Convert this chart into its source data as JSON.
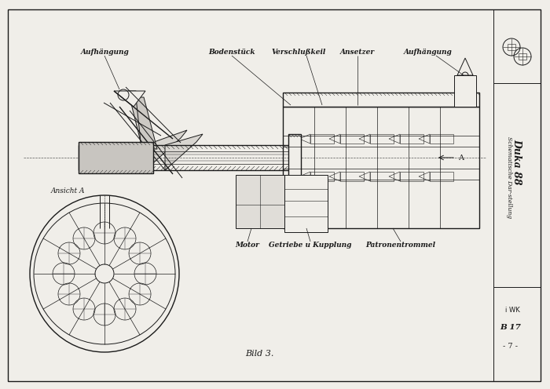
{
  "bg_color": "#e8e6e2",
  "paper_color": "#f0eee9",
  "draw_color": "#1a1a1a",
  "white": "#ffffff",
  "title1": "Duka 88",
  "title2": "Schematische Dar-stellung",
  "caption": "Bild 3.",
  "labels_top": [
    "Aufhängung",
    "Bodenstück",
    "Verschlußkeil",
    "Ansetzer",
    "Aufhängung"
  ],
  "labels_bottom": [
    "Motor",
    "Getriebe u Kupplung",
    "Patronentrommel"
  ],
  "label_ansicht": "Ansicht A",
  "sidebar_top": "i WK",
  "sidebar_bottom": "B 17",
  "sidebar_page": "- 7 -"
}
